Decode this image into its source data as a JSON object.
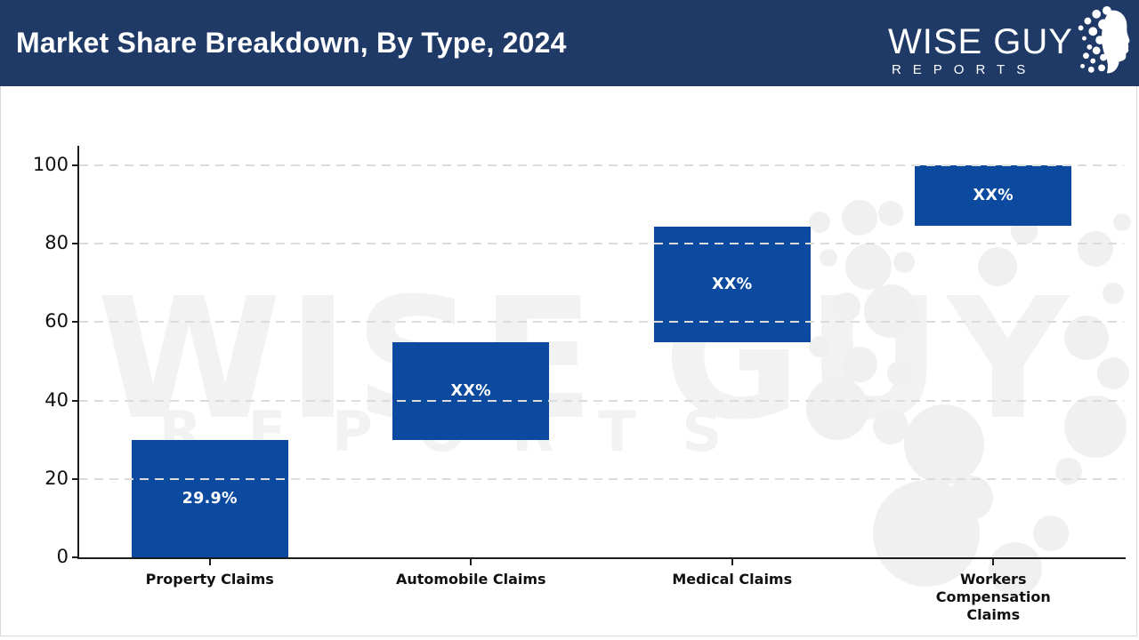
{
  "header": {
    "title": "Market Share Breakdown, By Type, 2024",
    "logo": {
      "name": "WISE GUY",
      "subname": "REPORTS"
    }
  },
  "watermark": {
    "line1": "WISE GUY",
    "line2": "REPORTS"
  },
  "chart_data": {
    "type": "bar",
    "subtype": "waterfall-range-bars",
    "title": "Market Share Breakdown, By Type, 2024",
    "categories": [
      "Property Claims",
      "Automobile Claims",
      "Medical Claims",
      "Workers Compensation Claims"
    ],
    "category_display": [
      "Property Claims",
      "Automobile Claims",
      "Medical Claims",
      "Workers\nCompensation\nClaims"
    ],
    "bars": [
      {
        "category": "Property Claims",
        "from": 0,
        "to": 29.9,
        "label": "29.9%"
      },
      {
        "category": "Automobile Claims",
        "from": 29.9,
        "to": 54.8,
        "label": "XX%"
      },
      {
        "category": "Medical Claims",
        "from": 54.8,
        "to": 84.4,
        "label": "XX%"
      },
      {
        "category": "Workers Compensation Claims",
        "from": 84.6,
        "to": 100,
        "label": "XX%"
      }
    ],
    "ylim": [
      0,
      100
    ],
    "yticks": [
      0,
      20,
      40,
      60,
      80,
      100
    ],
    "grid": "horizontal-dashed",
    "legend": "none",
    "colors": {
      "bar": "#0b4a9f",
      "header_bg": "#1f3a67",
      "grid": "#dcdcdc",
      "axis": "#1c1c1c",
      "tick_label": "#111111",
      "bar_label": "#ffffff",
      "watermark": "#f2f2f2",
      "frame_border": "#d9d9d9"
    }
  }
}
